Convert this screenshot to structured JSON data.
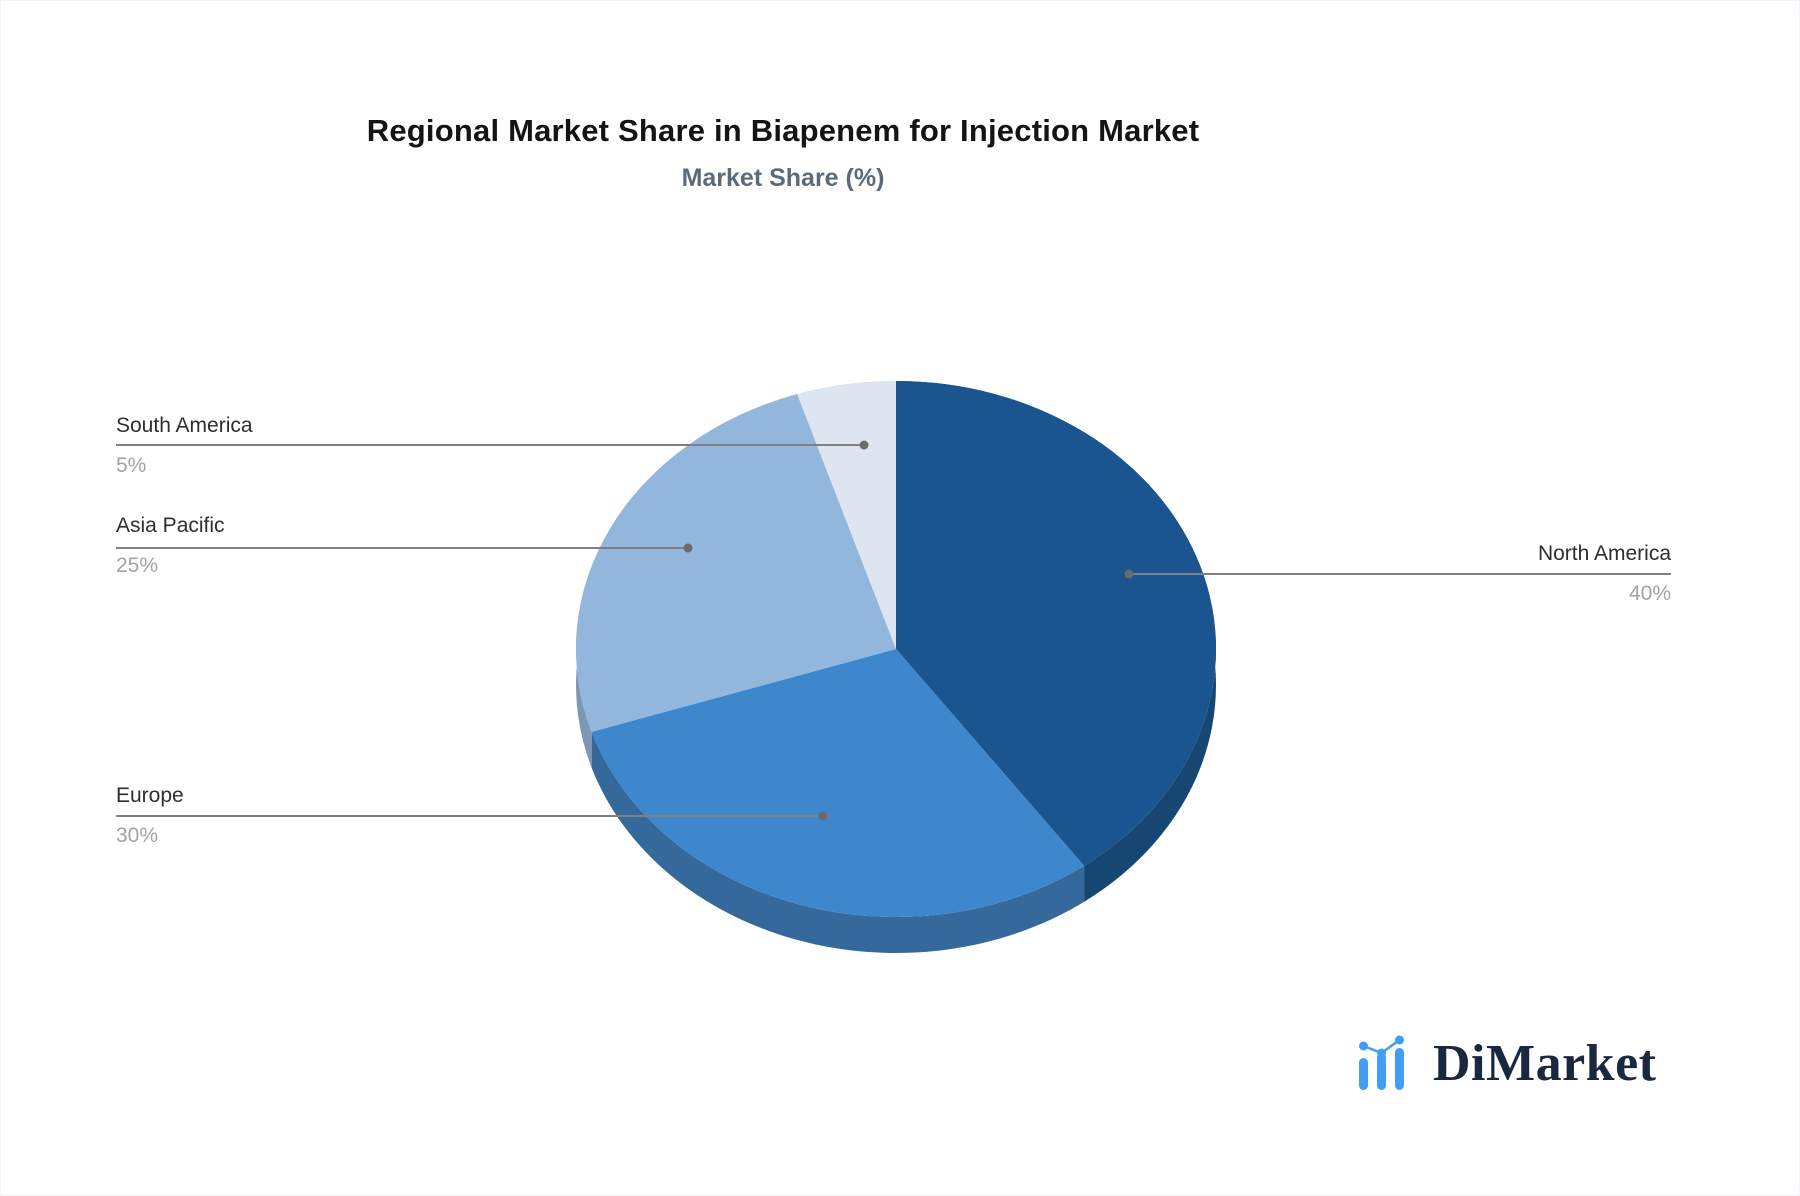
{
  "header": {
    "title": "Regional Market Share in Biapenem for Injection Market",
    "subtitle": "Market Share (%)"
  },
  "chart_data": {
    "type": "pie",
    "style": "3d",
    "title": "Regional Market Share in Biapenem for Injection Market",
    "subtitle": "Market Share (%)",
    "unit": "%",
    "start_angle_deg": 0,
    "direction": "clockwise",
    "legend_position": "none",
    "labels_style": "callout-lines",
    "slices": [
      {
        "label": "North America",
        "value": 40,
        "display": "40%",
        "color": "#1a5590",
        "side_color": "#164672",
        "label_side": "right"
      },
      {
        "label": "Europe",
        "value": 30,
        "display": "30%",
        "color": "#3e87cc",
        "side_color": "#35689b",
        "label_side": "left"
      },
      {
        "label": "Asia Pacific",
        "value": 25,
        "display": "25%",
        "color": "#93b6dd",
        "side_color": "#7e97b7",
        "label_side": "left"
      },
      {
        "label": "South America",
        "value": 5,
        "display": "5%",
        "color": "#dde5f0",
        "side_color": "#c3cedd",
        "label_side": "left"
      }
    ],
    "leader_line_color": "#808080",
    "leader_dot_color": "#6b6b6b",
    "label_name_color": "#2e2e2e",
    "label_value_color": "#a3a3a3"
  },
  "branding": {
    "logo_text": "DiMarket",
    "logo_icon": "bar-chart-trend-icon",
    "logo_text_color": "#19273f",
    "logo_icon_color": "#429ef2"
  }
}
